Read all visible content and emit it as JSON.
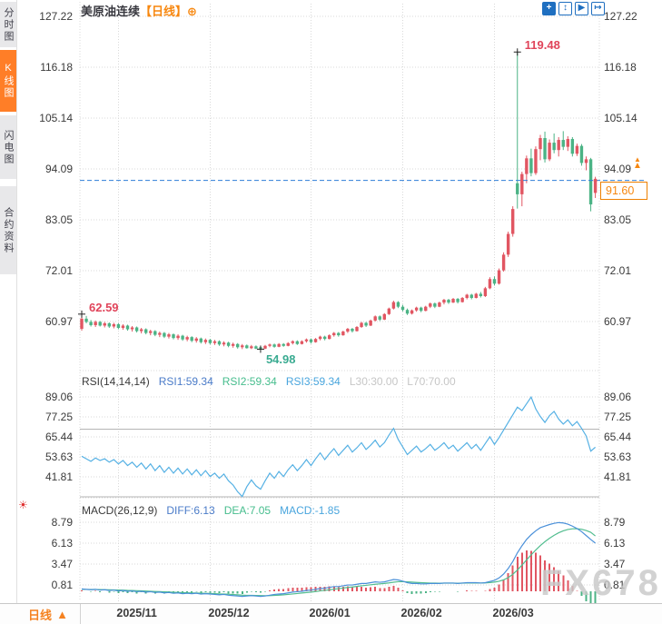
{
  "header": {
    "symbol": "美原油连续",
    "period": "【日线】",
    "expand_icon": "⊕"
  },
  "toolbar": {
    "icons": [
      "crosshair-move-icon",
      "zoom-vertical-icon",
      "zoom-play-icon",
      "pan-right-icon"
    ]
  },
  "sidebar": {
    "tabs": [
      {
        "label": "分时图",
        "active": false
      },
      {
        "label": "K线图",
        "active": true
      },
      {
        "label": "闪电图",
        "active": false
      },
      {
        "label": "合约资料",
        "active": false
      }
    ]
  },
  "indicators": {
    "rsi": {
      "name": "RSI(14,14,14)",
      "rsi1": "RSI1:59.34",
      "rsi2": "RSI2:59.34",
      "rsi3": "RSI3:59.34",
      "l30": "L30:30.00",
      "l70": "L70:70.00"
    },
    "macd": {
      "name": "MACD(26,12,9)",
      "diff": "DIFF:6.13",
      "dea": "DEA:7.05",
      "macd": "MACD:-1.85"
    }
  },
  "price_marker": {
    "last_price": "91.60"
  },
  "bottom_bar": {
    "period": "日线",
    "arrow": "▲"
  },
  "watermark": "FX678",
  "colors": {
    "up": "#e15662",
    "down": "#4bb385",
    "accent_orange": "#f08300",
    "dashed_line": "#2f7ed8",
    "rsi_line": "#56b1e4",
    "diff_line": "#4a90d9",
    "dea_line": "#52bd8f",
    "grid": "#d9d9d9"
  },
  "chart_data": {
    "type": "candlestick",
    "title": "美原油连续 日线",
    "price_ticks": [
      127.22,
      116.18,
      105.14,
      94.09,
      83.05,
      72.01,
      60.97
    ],
    "rsi_ticks": [
      89.06,
      77.25,
      65.44,
      53.63,
      41.81
    ],
    "macd_ticks": [
      8.79,
      6.13,
      3.47,
      0.81
    ],
    "rsi_levels": [
      70,
      30
    ],
    "x_tick_labels": [
      "2025/11",
      "2025/12",
      "2026/01",
      "2026/02",
      "2026/03"
    ],
    "x_tick_indices": [
      8,
      28,
      50,
      70,
      90
    ],
    "last_price": 91.6,
    "annotations": {
      "first_high": 62.59,
      "first_high_index": 0,
      "low": 54.98,
      "low_index": 39,
      "high": 119.48,
      "high_index": 95
    },
    "candles": [
      [
        59.4,
        62.59,
        59.0,
        61.6
      ],
      [
        61.6,
        62.2,
        60.6,
        60.9
      ],
      [
        60.9,
        61.3,
        59.9,
        60.2
      ],
      [
        60.2,
        61.2,
        59.8,
        60.9
      ],
      [
        60.9,
        61.1,
        59.9,
        60.1
      ],
      [
        60.1,
        60.9,
        59.7,
        60.6
      ],
      [
        60.6,
        60.8,
        59.6,
        59.9
      ],
      [
        59.9,
        60.7,
        59.5,
        60.4
      ],
      [
        60.4,
        60.6,
        59.3,
        59.6
      ],
      [
        59.6,
        60.4,
        59.2,
        60.1
      ],
      [
        60.1,
        60.3,
        59.0,
        59.3
      ],
      [
        59.3,
        60.0,
        58.8,
        59.7
      ],
      [
        59.7,
        59.9,
        58.6,
        58.9
      ],
      [
        58.9,
        59.6,
        58.4,
        59.3
      ],
      [
        59.3,
        59.5,
        58.2,
        58.5
      ],
      [
        58.5,
        59.2,
        58.0,
        58.9
      ],
      [
        58.9,
        59.1,
        57.8,
        58.1
      ],
      [
        58.1,
        58.8,
        57.6,
        58.5
      ],
      [
        58.5,
        58.7,
        57.4,
        57.7
      ],
      [
        57.7,
        58.5,
        57.3,
        58.2
      ],
      [
        58.2,
        58.4,
        57.1,
        57.4
      ],
      [
        57.4,
        58.2,
        57.0,
        57.9
      ],
      [
        57.9,
        58.1,
        56.8,
        57.1
      ],
      [
        57.1,
        57.9,
        56.7,
        57.6
      ],
      [
        57.6,
        57.8,
        56.5,
        56.8
      ],
      [
        56.8,
        57.6,
        56.4,
        57.3
      ],
      [
        57.3,
        57.5,
        56.2,
        56.5
      ],
      [
        56.5,
        57.3,
        56.1,
        57.0
      ],
      [
        57.0,
        57.2,
        56.0,
        56.3
      ],
      [
        56.3,
        57.0,
        55.9,
        56.7
      ],
      [
        56.7,
        56.9,
        55.7,
        56.0
      ],
      [
        56.0,
        56.7,
        55.6,
        56.4
      ],
      [
        56.4,
        56.6,
        55.4,
        55.7
      ],
      [
        55.7,
        56.4,
        55.3,
        56.1
      ],
      [
        56.1,
        56.3,
        55.1,
        55.4
      ],
      [
        55.4,
        56.1,
        55.0,
        55.8
      ],
      [
        55.8,
        56.0,
        55.1,
        55.2
      ],
      [
        55.2,
        55.9,
        55.0,
        55.6
      ],
      [
        55.6,
        55.8,
        55.0,
        55.1
      ],
      [
        55.4,
        55.6,
        54.98,
        55.1
      ],
      [
        55.1,
        55.9,
        55.0,
        55.7
      ],
      [
        55.7,
        56.2,
        55.4,
        56.0
      ],
      [
        56.0,
        56.2,
        55.3,
        55.5
      ],
      [
        55.5,
        56.3,
        55.4,
        56.1
      ],
      [
        56.1,
        56.3,
        55.5,
        55.7
      ],
      [
        55.7,
        56.5,
        55.6,
        56.3
      ],
      [
        56.3,
        56.9,
        56.0,
        56.7
      ],
      [
        56.7,
        56.9,
        55.9,
        56.1
      ],
      [
        56.1,
        56.9,
        56.0,
        56.7
      ],
      [
        56.7,
        57.3,
        56.4,
        57.1
      ],
      [
        57.1,
        57.3,
        56.2,
        56.5
      ],
      [
        56.5,
        57.4,
        56.4,
        57.2
      ],
      [
        57.2,
        57.9,
        56.9,
        57.7
      ],
      [
        57.7,
        57.9,
        56.9,
        57.2
      ],
      [
        57.2,
        58.2,
        57.1,
        58.0
      ],
      [
        58.0,
        58.7,
        57.7,
        58.5
      ],
      [
        58.5,
        58.7,
        57.7,
        58.0
      ],
      [
        58.0,
        59.0,
        57.9,
        58.8
      ],
      [
        58.8,
        59.6,
        58.5,
        59.4
      ],
      [
        59.4,
        59.6,
        58.6,
        58.9
      ],
      [
        58.9,
        60.0,
        58.8,
        59.8
      ],
      [
        59.8,
        60.9,
        59.6,
        60.7
      ],
      [
        60.7,
        60.9,
        59.8,
        60.1
      ],
      [
        60.1,
        61.4,
        60.0,
        61.2
      ],
      [
        61.2,
        62.3,
        61.0,
        62.1
      ],
      [
        62.1,
        62.3,
        61.1,
        61.4
      ],
      [
        61.4,
        62.8,
        61.3,
        62.6
      ],
      [
        62.6,
        64.0,
        62.4,
        63.8
      ],
      [
        63.8,
        65.5,
        63.6,
        65.2
      ],
      [
        65.2,
        65.4,
        63.9,
        64.2
      ],
      [
        64.2,
        64.6,
        63.2,
        63.5
      ],
      [
        63.5,
        63.8,
        62.4,
        62.7
      ],
      [
        62.7,
        63.6,
        62.5,
        63.4
      ],
      [
        63.4,
        64.2,
        63.1,
        64.0
      ],
      [
        64.0,
        64.2,
        63.0,
        63.3
      ],
      [
        63.3,
        64.4,
        63.2,
        64.2
      ],
      [
        64.2,
        65.1,
        63.9,
        64.9
      ],
      [
        64.9,
        65.1,
        63.9,
        64.2
      ],
      [
        64.2,
        65.3,
        64.1,
        65.1
      ],
      [
        65.1,
        65.9,
        64.7,
        65.7
      ],
      [
        65.7,
        65.9,
        64.8,
        65.1
      ],
      [
        65.1,
        66.1,
        65.0,
        65.9
      ],
      [
        65.9,
        66.1,
        64.9,
        65.2
      ],
      [
        65.2,
        66.3,
        65.1,
        66.1
      ],
      [
        66.1,
        67.0,
        65.8,
        66.8
      ],
      [
        66.8,
        67.0,
        65.8,
        66.1
      ],
      [
        66.1,
        67.2,
        66.0,
        67.0
      ],
      [
        67.0,
        67.4,
        66.2,
        66.5
      ],
      [
        66.5,
        68.5,
        66.3,
        68.2
      ],
      [
        68.2,
        70.6,
        68.0,
        70.2
      ],
      [
        70.2,
        70.8,
        68.8,
        69.2
      ],
      [
        69.2,
        72.5,
        69.0,
        72.1
      ],
      [
        72.1,
        76.0,
        71.8,
        75.5
      ],
      [
        75.5,
        80.5,
        75.0,
        80.0
      ],
      [
        80.0,
        86.0,
        79.4,
        85.4
      ],
      [
        91.0,
        119.48,
        85.5,
        88.6
      ],
      [
        88.6,
        93.5,
        86.0,
        93.0
      ],
      [
        93.0,
        97.0,
        91.0,
        96.4
      ],
      [
        96.4,
        98.5,
        92.5,
        93.2
      ],
      [
        93.2,
        99.0,
        92.8,
        98.4
      ],
      [
        98.4,
        101.5,
        96.0,
        100.8
      ],
      [
        100.8,
        102.2,
        95.5,
        96.2
      ],
      [
        96.2,
        100.5,
        95.8,
        99.8
      ],
      [
        99.8,
        101.8,
        97.5,
        98.2
      ],
      [
        98.2,
        101.0,
        96.8,
        100.4
      ],
      [
        100.4,
        102.3,
        98.2,
        98.9
      ],
      [
        98.9,
        101.2,
        98.0,
        100.6
      ],
      [
        100.6,
        101.0,
        96.8,
        97.4
      ],
      [
        97.4,
        99.6,
        96.9,
        99.1
      ],
      [
        99.1,
        99.5,
        94.8,
        95.4
      ],
      [
        95.4,
        96.8,
        93.8,
        96.2
      ],
      [
        96.2,
        96.5,
        84.9,
        86.4
      ],
      [
        88.9,
        92.4,
        87.8,
        91.6
      ]
    ],
    "rsi": [
      54,
      52.5,
      51,
      53,
      51.5,
      52.5,
      50.5,
      52,
      49.5,
      51.5,
      48.5,
      50.5,
      47.5,
      50,
      46.5,
      49.5,
      45.5,
      48.5,
      44.5,
      47.5,
      44,
      47,
      43.5,
      46.5,
      43,
      46,
      42.5,
      45.5,
      42,
      44,
      41,
      43.5,
      39.5,
      37,
      33,
      30.2,
      36,
      40,
      36.5,
      34.5,
      39.5,
      44,
      41,
      45,
      42,
      46,
      49,
      45.5,
      48.5,
      52,
      48.5,
      52.5,
      56,
      52,
      55.5,
      58.5,
      54.5,
      57.5,
      60.5,
      56.5,
      59,
      62,
      58,
      60.5,
      63.5,
      59.5,
      62,
      66.5,
      70.5,
      64,
      59.5,
      55,
      57.5,
      60,
      56.5,
      58.5,
      61,
      57.5,
      59.5,
      62,
      58.5,
      60.5,
      57,
      59.5,
      62,
      58.5,
      61,
      57.5,
      61.5,
      65.5,
      61,
      65,
      69.5,
      74,
      78.5,
      83,
      81,
      85,
      89,
      82,
      77.5,
      74,
      78,
      80.5,
      76,
      73,
      75.5,
      72,
      74.5,
      70.5,
      66,
      57,
      59.34
    ],
    "macd_diff": [
      0.3,
      0.25,
      0.2,
      0.25,
      0.15,
      0.2,
      0.1,
      0.15,
      0.05,
      0.1,
      0.0,
      0.05,
      -0.05,
      0.0,
      -0.1,
      -0.05,
      -0.15,
      -0.1,
      -0.2,
      -0.15,
      -0.25,
      -0.2,
      -0.3,
      -0.25,
      -0.3,
      -0.25,
      -0.35,
      -0.3,
      -0.35,
      -0.4,
      -0.45,
      -0.4,
      -0.5,
      -0.55,
      -0.6,
      -0.65,
      -0.6,
      -0.55,
      -0.6,
      -0.65,
      -0.6,
      -0.5,
      -0.4,
      -0.35,
      -0.3,
      -0.2,
      -0.1,
      -0.05,
      0.0,
      0.1,
      0.15,
      0.25,
      0.35,
      0.4,
      0.5,
      0.6,
      0.6,
      0.7,
      0.8,
      0.8,
      0.9,
      1.0,
      1.0,
      1.1,
      1.2,
      1.15,
      1.2,
      1.35,
      1.5,
      1.45,
      1.3,
      1.1,
      1.0,
      1.0,
      0.95,
      0.95,
      1.0,
      1.0,
      1.0,
      1.05,
      1.05,
      1.05,
      1.0,
      1.05,
      1.1,
      1.1,
      1.1,
      1.05,
      1.1,
      1.25,
      1.4,
      1.7,
      2.2,
      2.9,
      3.8,
      4.9,
      5.8,
      6.6,
      7.2,
      7.7,
      8.1,
      8.3,
      8.5,
      8.65,
      8.75,
      8.7,
      8.55,
      8.3,
      8.0,
      7.6,
      7.1,
      6.6,
      6.13
    ],
    "macd_dea": [
      0.25,
      0.24,
      0.23,
      0.23,
      0.22,
      0.21,
      0.19,
      0.18,
      0.16,
      0.15,
      0.12,
      0.11,
      0.08,
      0.06,
      0.03,
      0.01,
      -0.02,
      -0.04,
      -0.07,
      -0.09,
      -0.12,
      -0.14,
      -0.17,
      -0.19,
      -0.21,
      -0.22,
      -0.24,
      -0.25,
      -0.27,
      -0.3,
      -0.33,
      -0.34,
      -0.37,
      -0.41,
      -0.45,
      -0.49,
      -0.51,
      -0.52,
      -0.53,
      -0.55,
      -0.56,
      -0.55,
      -0.52,
      -0.49,
      -0.45,
      -0.4,
      -0.34,
      -0.28,
      -0.22,
      -0.16,
      -0.1,
      -0.03,
      0.05,
      0.12,
      0.19,
      0.27,
      0.34,
      0.41,
      0.49,
      0.55,
      0.62,
      0.7,
      0.76,
      0.83,
      0.9,
      0.95,
      1.0,
      1.07,
      1.16,
      1.22,
      1.23,
      1.21,
      1.17,
      1.13,
      1.1,
      1.07,
      1.05,
      1.04,
      1.03,
      1.04,
      1.04,
      1.04,
      1.03,
      1.04,
      1.05,
      1.06,
      1.07,
      1.06,
      1.07,
      1.11,
      1.17,
      1.28,
      1.46,
      1.75,
      2.16,
      2.71,
      3.33,
      4.0,
      4.64,
      5.25,
      5.82,
      6.32,
      6.75,
      7.13,
      7.45,
      7.7,
      7.87,
      7.96,
      7.97,
      7.9,
      7.74,
      7.51,
      7.05
    ]
  }
}
